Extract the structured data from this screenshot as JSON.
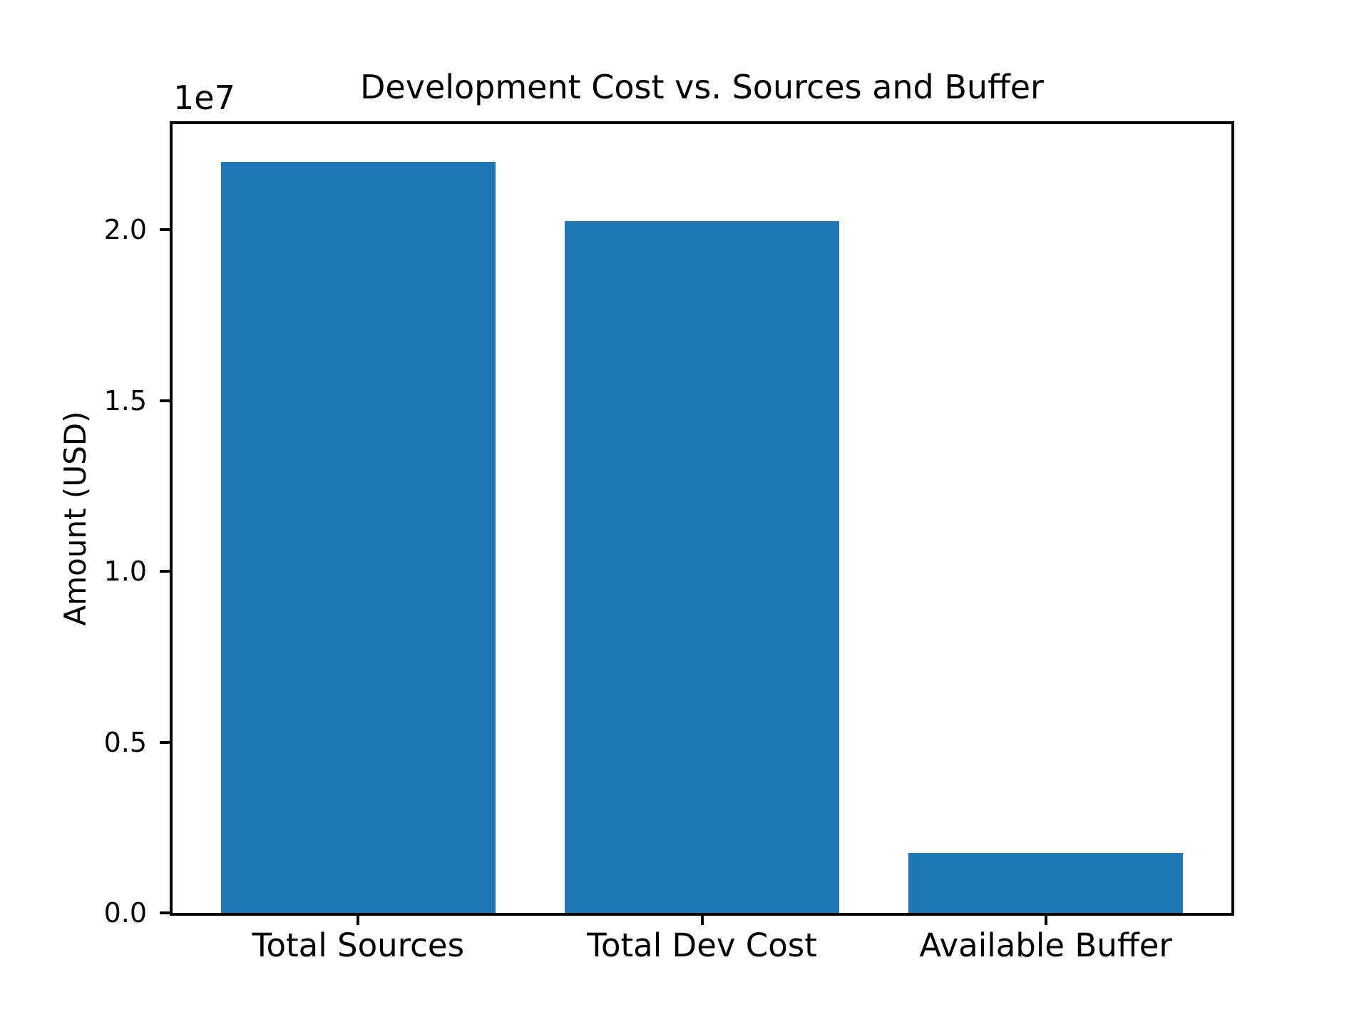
{
  "chart_data": {
    "type": "bar",
    "title": "Development Cost vs. Sources and Buffer",
    "categories": [
      "Total Sources",
      "Total Dev Cost",
      "Available Buffer"
    ],
    "values": [
      22000000,
      20250000,
      1750000
    ],
    "xlabel": "",
    "ylabel": "Amount (USD)",
    "ylim": [
      0,
      23100000
    ],
    "y_ticks": {
      "values": [
        0,
        5000000,
        10000000,
        15000000,
        20000000
      ],
      "labels": [
        "0.0",
        "0.5",
        "1.0",
        "1.5",
        "2.0"
      ]
    },
    "offset_text": "1e7",
    "bar_color": "#1f77b4",
    "axis_color": "#000000",
    "grid": false,
    "legend": false
  }
}
